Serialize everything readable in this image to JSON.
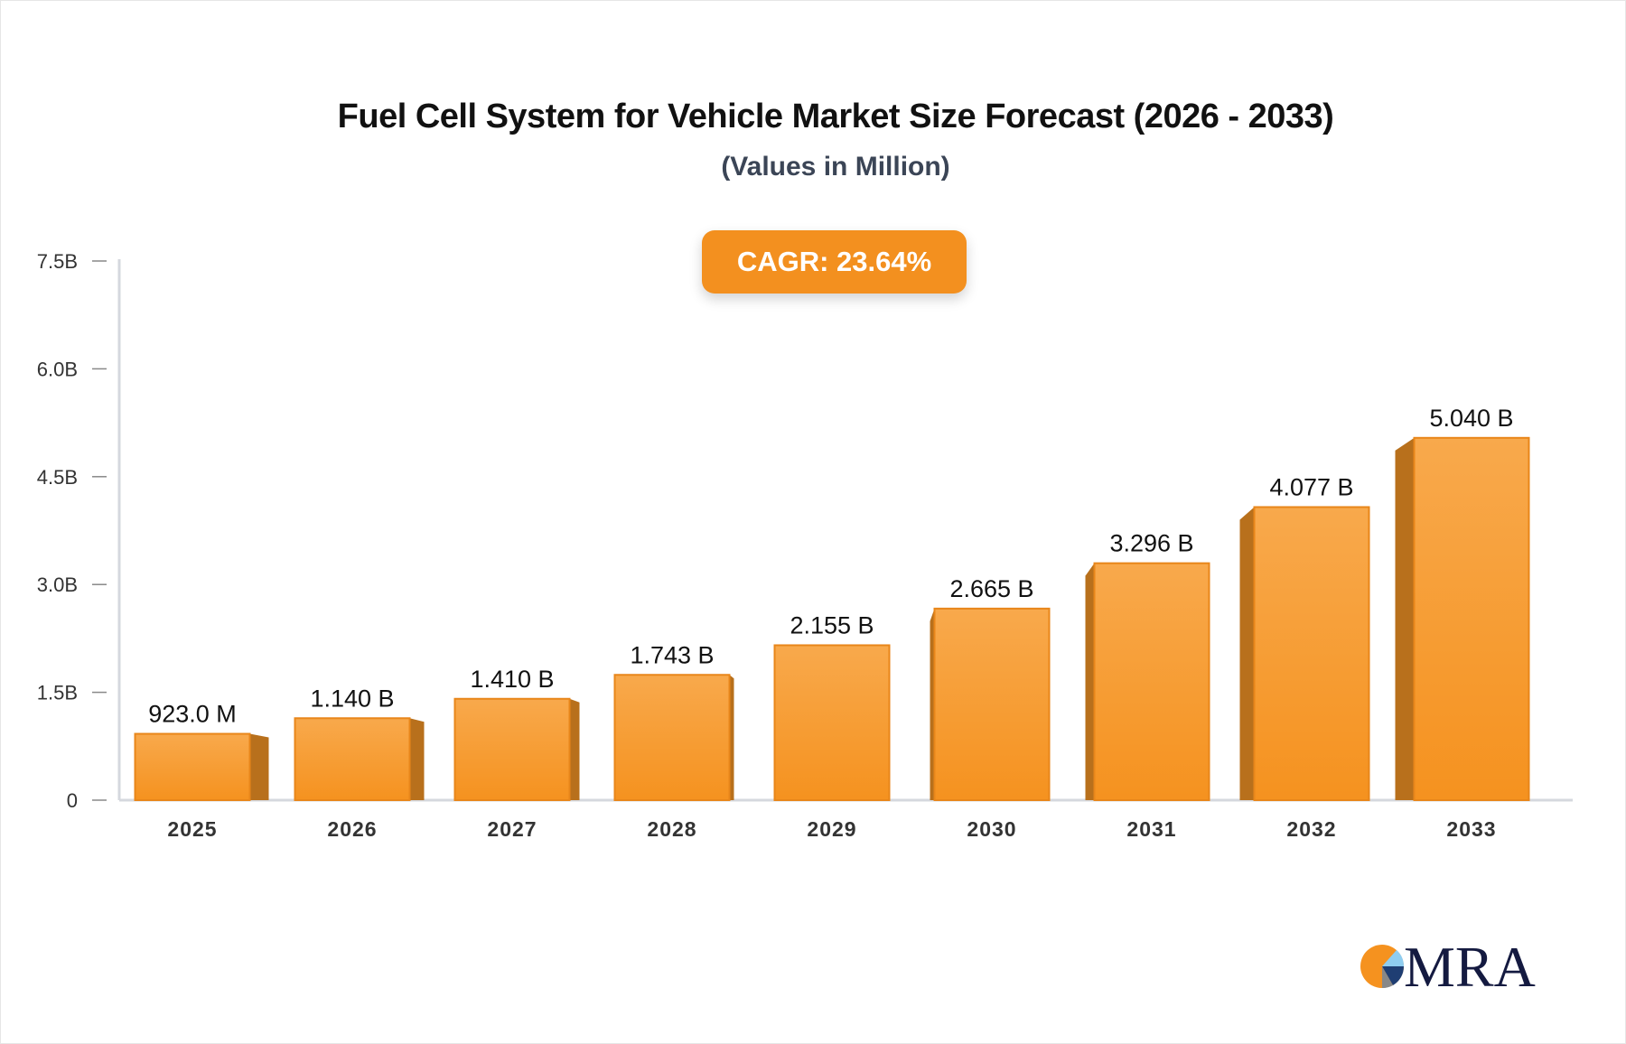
{
  "chart_data": {
    "type": "bar",
    "title": "Fuel Cell System for Vehicle Market Size Forecast (2026 - 2033)",
    "subtitle": "(Values in Million)",
    "annotation": "CAGR: 23.64%",
    "categories": [
      "2025",
      "2026",
      "2027",
      "2028",
      "2029",
      "2030",
      "2031",
      "2032",
      "2033"
    ],
    "values": [
      0.923,
      1.14,
      1.41,
      1.743,
      2.155,
      2.665,
      3.296,
      4.077,
      5.04
    ],
    "data_labels": [
      "923.0 M",
      "1.140 B",
      "1.410 B",
      "1.743 B",
      "2.155 B",
      "2.665 B",
      "3.296 B",
      "4.077 B",
      "5.040 B"
    ],
    "yunit": "B",
    "ylim": [
      0,
      7.5
    ],
    "yticks": [
      0,
      1.5,
      3.0,
      4.5,
      6.0,
      7.5
    ],
    "ytick_labels": [
      "0",
      "1.5B",
      "3.0B",
      "4.5B",
      "6.0B",
      "7.5B"
    ],
    "xlabel": "",
    "ylabel": "",
    "grid": false,
    "colors": {
      "bar_top": "#f8a94c",
      "bar_bottom": "#f5921f",
      "bar_side": "#b8701c",
      "bar_edge": "#e8861a",
      "accent": "#f3901f"
    }
  },
  "logo": {
    "text": "MRA"
  }
}
